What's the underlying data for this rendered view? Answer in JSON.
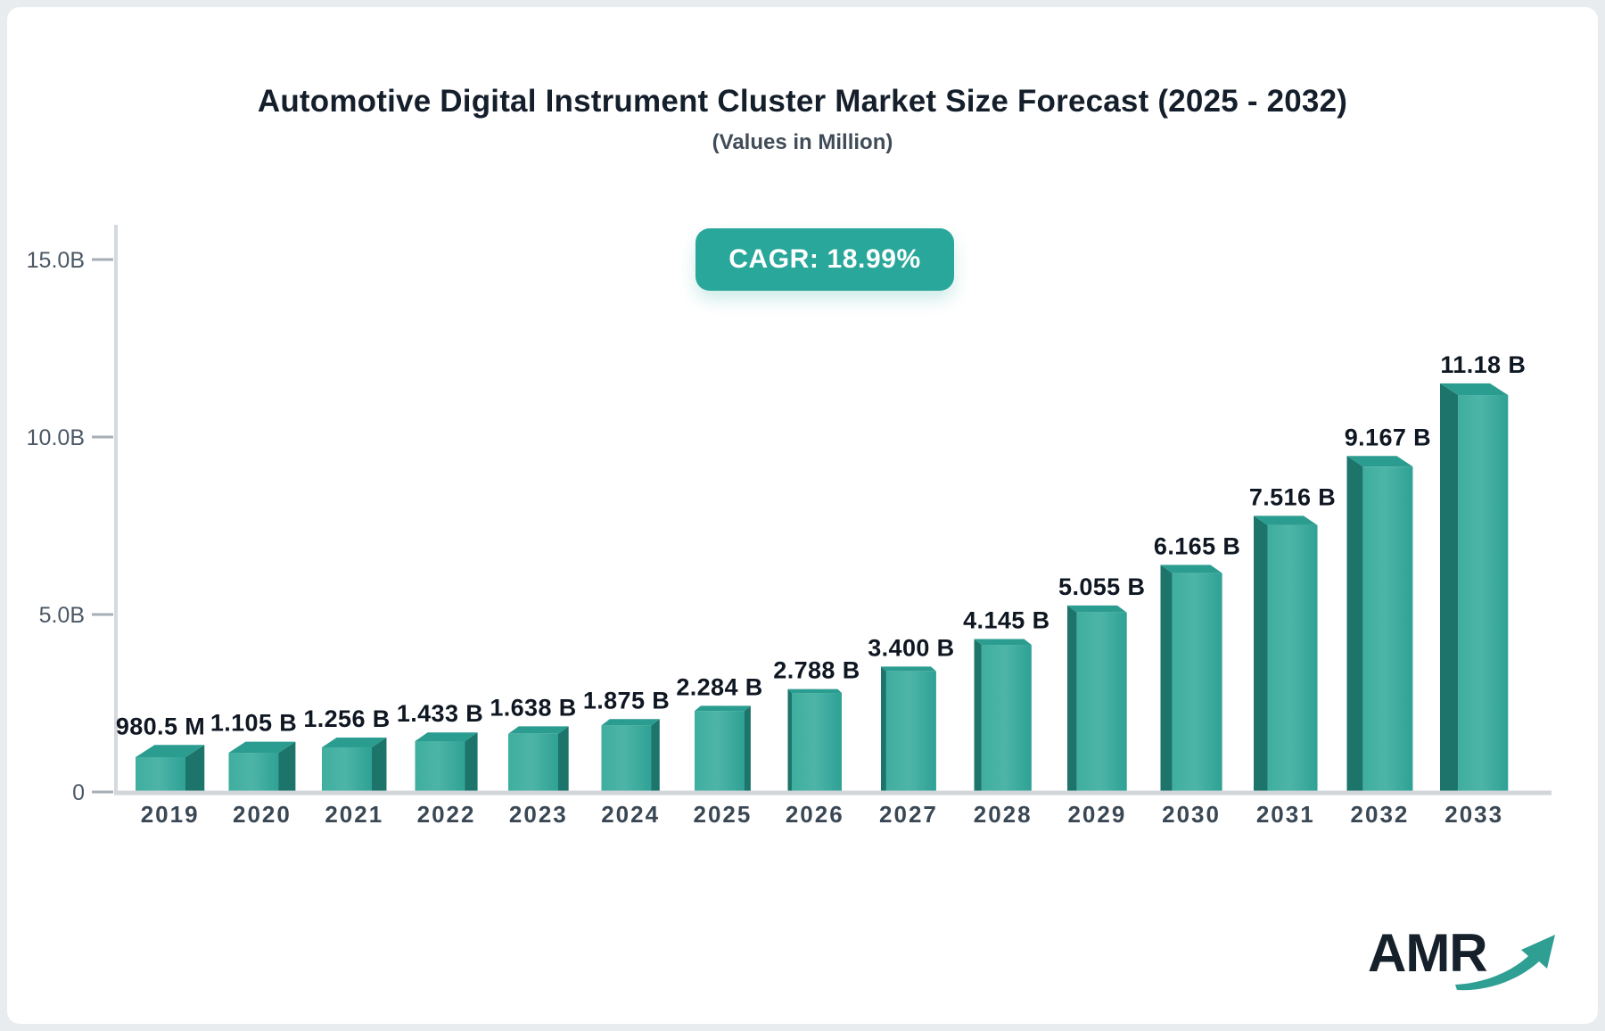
{
  "chart_data": {
    "type": "bar",
    "title": "Automotive Digital Instrument Cluster Market Size Forecast (2025 - 2032)",
    "subtitle": "(Values in Million)",
    "cagr_badge": "CAGR: 18.99%",
    "categories": [
      "2019",
      "2020",
      "2021",
      "2022",
      "2023",
      "2024",
      "2025",
      "2026",
      "2027",
      "2028",
      "2029",
      "2030",
      "2031",
      "2032",
      "2033"
    ],
    "values_billion": [
      0.9805,
      1.105,
      1.256,
      1.433,
      1.638,
      1.875,
      2.284,
      2.788,
      3.4,
      4.145,
      5.055,
      6.165,
      7.516,
      9.167,
      11.18
    ],
    "bar_labels": [
      "980.5 M",
      "1.105 B",
      "1.256 B",
      "1.433 B",
      "1.638 B",
      "1.875 B",
      "2.284 B",
      "2.788 B",
      "3.400 B",
      "4.145 B",
      "5.055 B",
      "6.165 B",
      "7.516 B",
      "9.167 B",
      "11.18 B"
    ],
    "y_ticks": [
      {
        "value": 0,
        "label": "0"
      },
      {
        "value": 5,
        "label": "5.0B"
      },
      {
        "value": 10,
        "label": "10.0B"
      },
      {
        "value": 15,
        "label": "15.0B"
      }
    ],
    "ylim": [
      0,
      15
    ],
    "grid": false,
    "legend": "none",
    "colors": {
      "bar_front": "#35a89a",
      "bar_front_light": "#4db5a8",
      "bar_side": "#1c746b",
      "bar_top": "#2b9c90",
      "accent": "#2aa79b",
      "axis": "#d5d9dd",
      "tick": "#a6aeb6"
    }
  },
  "logo": {
    "text": "AMR"
  }
}
